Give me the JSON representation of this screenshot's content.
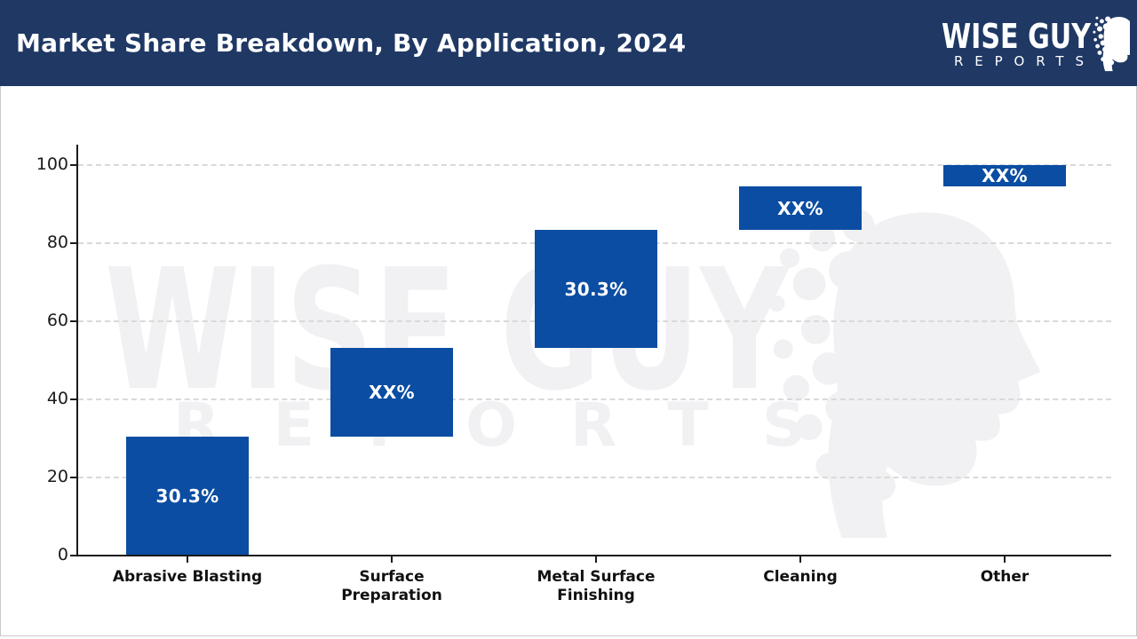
{
  "header": {
    "title": "Market Share Breakdown, By Application, 2024",
    "logo": {
      "line1": "WISE GUY",
      "line2": "REPORTS",
      "icon": "head-profile-dots"
    }
  },
  "watermark": {
    "line1": "WISE GUY",
    "line2": "REPORTS",
    "icon": "head-profile-dots"
  },
  "colors": {
    "header_bg": "#1F3864",
    "bar": "#0B4DA2",
    "gridline": "#D9D9D9",
    "axis": "#1A1A1A",
    "watermark": "#F1F1F3",
    "frame": "#C9C9C9",
    "bar_label_text": "#FFFFFF"
  },
  "chart_data": {
    "type": "bar",
    "subtype": "waterfall",
    "title": "Market Share Breakdown, By Application, 2024",
    "categories": [
      "Abrasive Blasting",
      "Surface Preparation",
      "Metal Surface Finishing",
      "Cleaning",
      "Other"
    ],
    "category_label_lines": [
      [
        "Abrasive Blasting"
      ],
      [
        "Surface",
        "Preparation"
      ],
      [
        "Metal Surface",
        "Finishing"
      ],
      [
        "Cleaning"
      ],
      [
        "Other"
      ]
    ],
    "segments": [
      {
        "category": "Abrasive Blasting",
        "start": 0,
        "end": 30.3,
        "label": "30.3%"
      },
      {
        "category": "Surface Preparation",
        "start": 30.3,
        "end": 53.0,
        "label": "XX%"
      },
      {
        "category": "Metal Surface Finishing",
        "start": 53.0,
        "end": 83.3,
        "label": "30.3%"
      },
      {
        "category": "Cleaning",
        "start": 83.3,
        "end": 94.4,
        "label": "XX%"
      },
      {
        "category": "Other",
        "start": 94.4,
        "end": 100,
        "label": "XX%"
      }
    ],
    "ylim": [
      0,
      100
    ],
    "yticks": [
      0,
      20,
      40,
      60,
      80,
      100
    ],
    "xlabel": "",
    "ylabel": "",
    "grid": "horizontal-dashed",
    "legend": null
  }
}
